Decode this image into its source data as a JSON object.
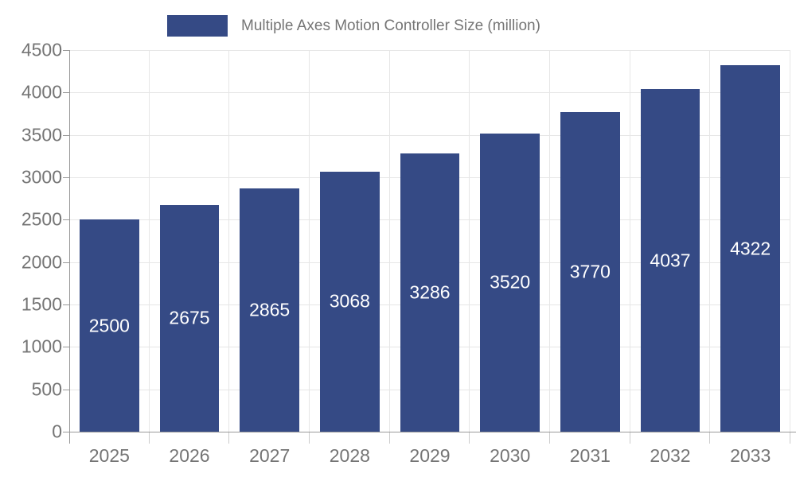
{
  "chart_data": {
    "type": "bar",
    "title": "Multiple Axes Motion Controller Size (million)",
    "legend": [
      "Multiple Axes Motion Controller Size (million)"
    ],
    "legend_position": "top",
    "categories": [
      "2025",
      "2026",
      "2027",
      "2028",
      "2029",
      "2030",
      "2031",
      "2032",
      "2033"
    ],
    "values": [
      2500,
      2675,
      2865,
      3068,
      3286,
      3520,
      3770,
      4037,
      4322
    ],
    "xlabel": "",
    "ylabel": "",
    "ylim": [
      0,
      4500
    ],
    "ytick_step": 500,
    "yticks": [
      0,
      500,
      1000,
      1500,
      2000,
      2500,
      3000,
      3500,
      4000,
      4500
    ],
    "grid": true,
    "value_labels_inside_bars": true,
    "bar_color": "#354A85",
    "value_label_color": "#FFFFFF",
    "axis_label_color": "#757575",
    "gridline_color": "#E6E6E6",
    "axis_line_color": "#999999",
    "x_tick_color": "#CCCCCC",
    "background_color": "#FFFFFF"
  }
}
